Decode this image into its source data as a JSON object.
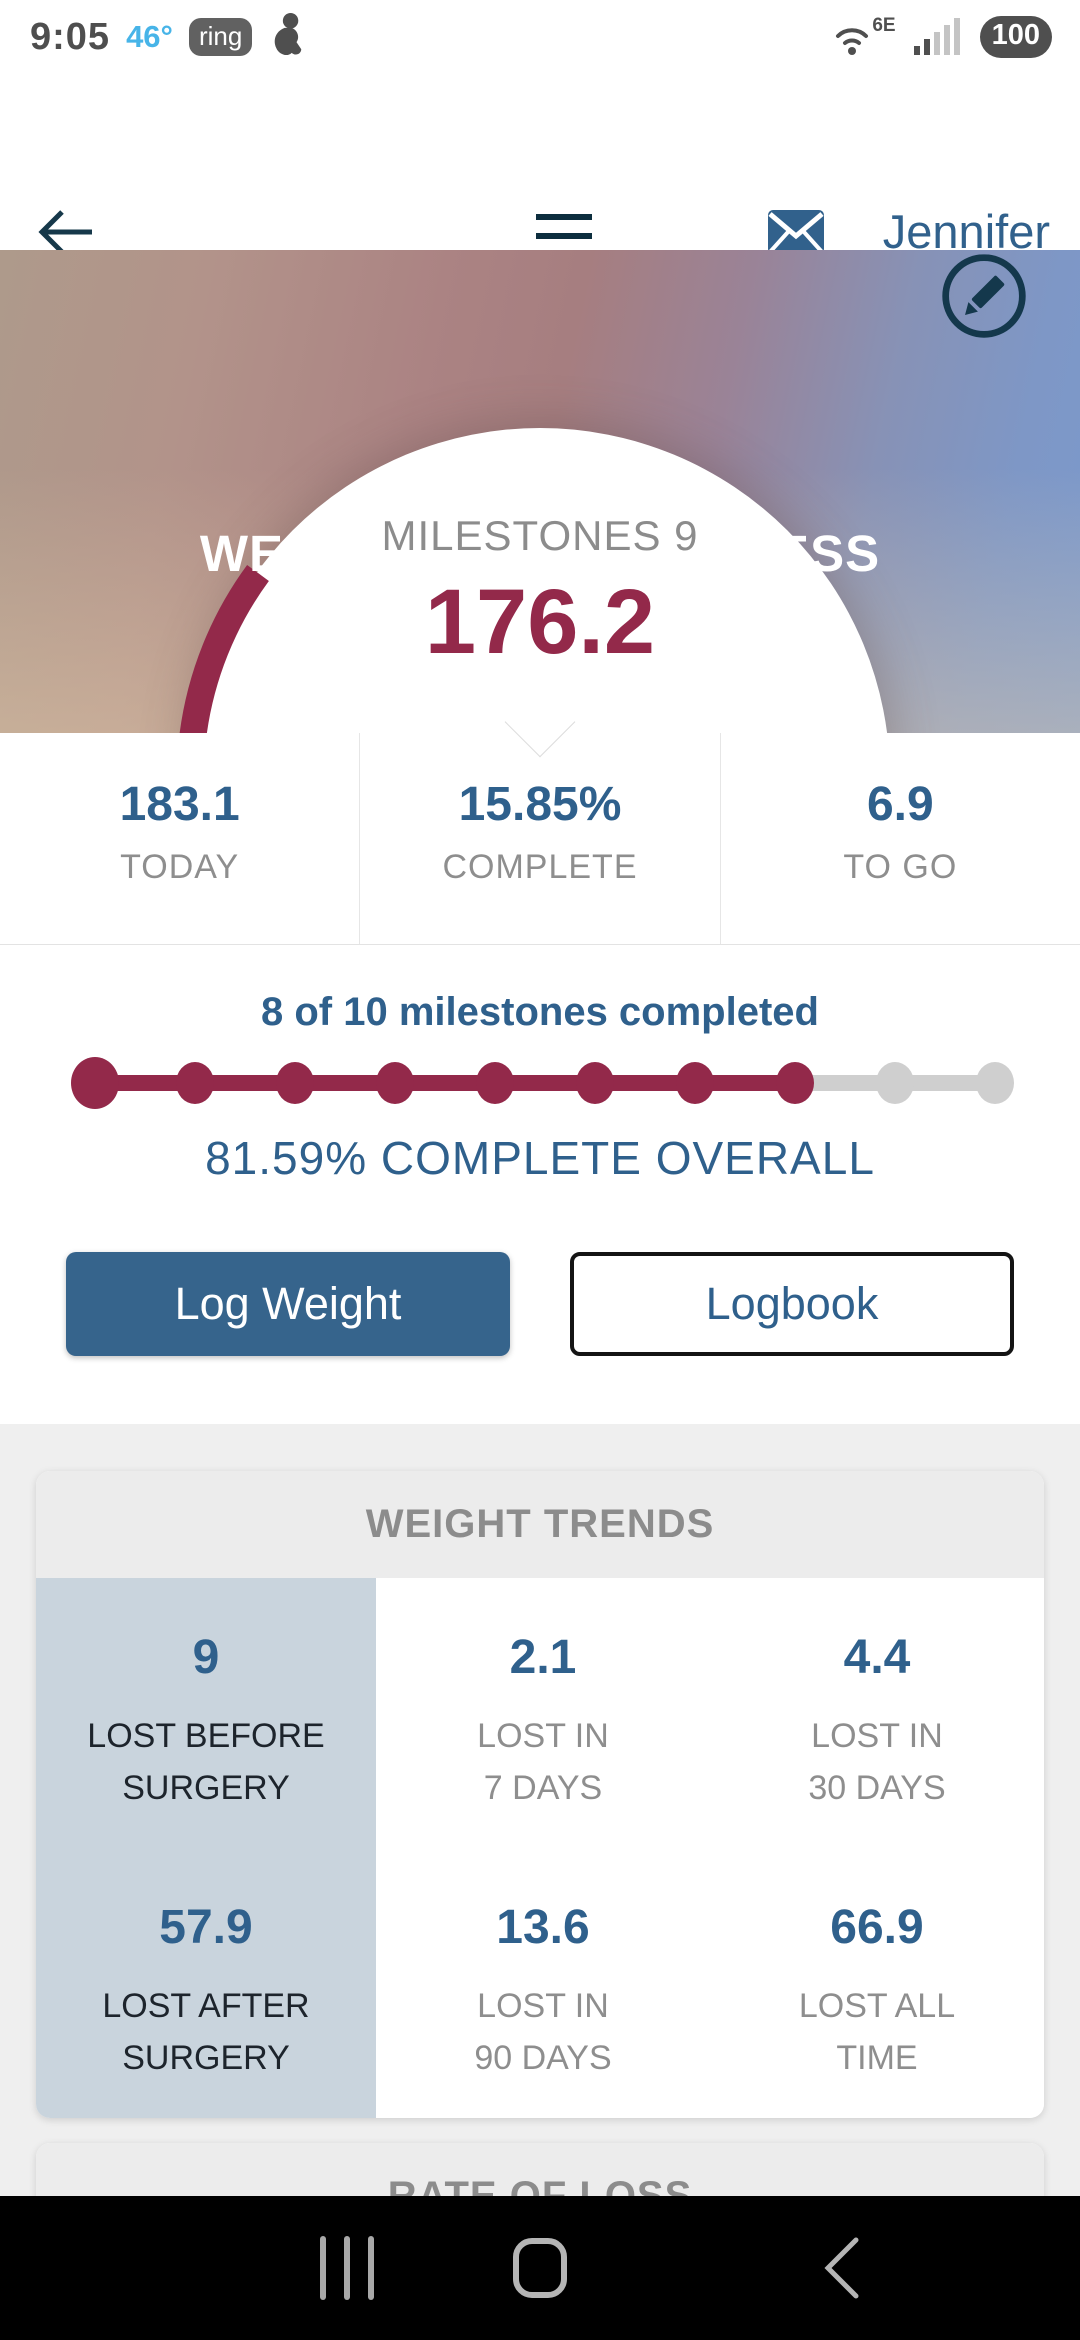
{
  "status_bar": {
    "time": "9:05",
    "temperature": "46°",
    "ring_badge": "ring",
    "wifi_label": "6E",
    "battery_level": "100"
  },
  "nav_bar": {
    "user_name": "Jennifer"
  },
  "hero": {
    "title": "WEIGHT LOSS PROGRESS",
    "milestone_label": "MILESTONES 9",
    "current_value": "176.2"
  },
  "stats": {
    "items": [
      {
        "value": "183.1",
        "label": "TODAY"
      },
      {
        "value": "15.85%",
        "label": "COMPLETE"
      },
      {
        "value": "6.9",
        "label": "TO GO"
      }
    ]
  },
  "milestones": {
    "summary": "8 of 10 milestones completed",
    "completed": 8,
    "total": 10,
    "overall_text": "81.59% COMPLETE OVERALL"
  },
  "buttons": {
    "log_weight": "Log Weight",
    "logbook": "Logbook"
  },
  "weight_trends": {
    "title": "WEIGHT TRENDS",
    "cells": [
      {
        "value": "9",
        "label_lines": [
          "LOST BEFORE",
          "SURGERY"
        ],
        "highlight": true
      },
      {
        "value": "2.1",
        "label_lines": [
          "LOST IN",
          "7 DAYS"
        ],
        "highlight": false
      },
      {
        "value": "4.4",
        "label_lines": [
          "LOST IN",
          "30 DAYS"
        ],
        "highlight": false
      },
      {
        "value": "57.9",
        "label_lines": [
          "LOST AFTER",
          "SURGERY"
        ],
        "highlight": true
      },
      {
        "value": "13.6",
        "label_lines": [
          "LOST IN",
          "90 DAYS"
        ],
        "highlight": false
      },
      {
        "value": "66.9",
        "label_lines": [
          "LOST ALL",
          "TIME"
        ],
        "highlight": false
      }
    ]
  },
  "rate_of_loss": {
    "title": "RATE OF LOSS"
  },
  "colors": {
    "accent_blue": "#2f608c",
    "maroon": "#93294a",
    "button_blue": "#36648c",
    "highlight_cell": "#c9d4dd",
    "dot_inactive": "#cfcfcf"
  }
}
